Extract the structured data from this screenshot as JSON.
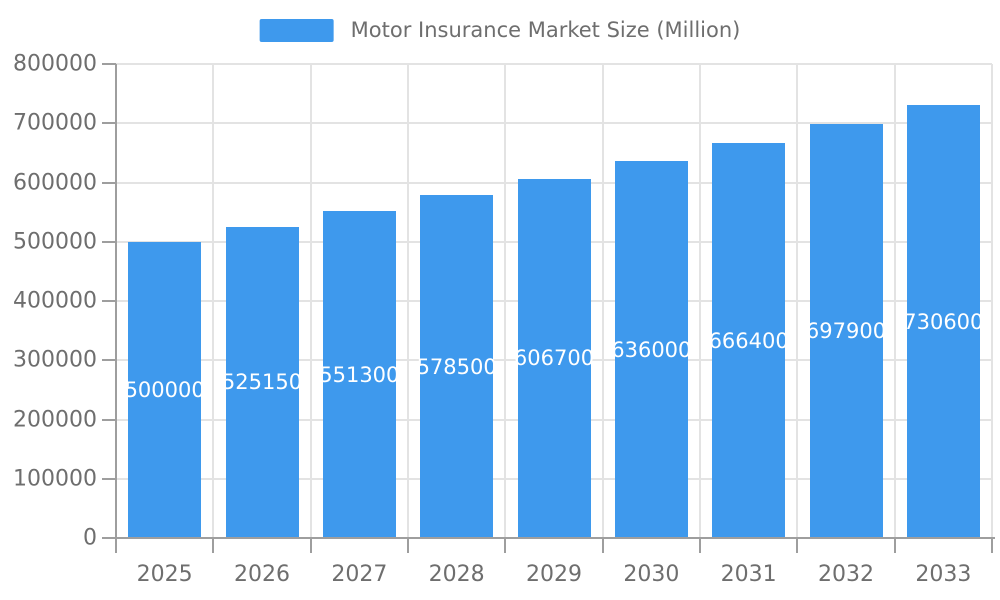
{
  "legend": {
    "label": "Motor Insurance Market Size (Million)"
  },
  "chart_data": {
    "type": "bar",
    "title": "Motor Insurance Market Size (Million)",
    "categories": [
      "2025",
      "2026",
      "2027",
      "2028",
      "2029",
      "2030",
      "2031",
      "2032",
      "2033"
    ],
    "values": [
      500000,
      525150,
      551300,
      578500,
      606700,
      636000,
      666400,
      697900,
      730600
    ],
    "series": [
      {
        "name": "Motor Insurance Market Size (Million)",
        "values": [
          500000,
          525150,
          551300,
          578500,
          606700,
          636000,
          666400,
          697900,
          730600
        ]
      }
    ],
    "value_labels": [
      "500000",
      "525150",
      "551300",
      "578500",
      "606700",
      "636000",
      "666400",
      "697900",
      "730600"
    ],
    "xlabel": "",
    "ylabel": "",
    "ylim": [
      0,
      800000
    ],
    "ytick_step": 100000,
    "ytick_labels": [
      "0",
      "100000",
      "200000",
      "300000",
      "400000",
      "500000",
      "600000",
      "700000",
      "800000"
    ],
    "grid": true,
    "legend_position": "top"
  },
  "colors": {
    "bar": "#3E99ED",
    "grid": "#E3E3E3",
    "axis": "#9E9E9E",
    "text": "#6E6E6E",
    "value_label": "#FFFFFF"
  }
}
